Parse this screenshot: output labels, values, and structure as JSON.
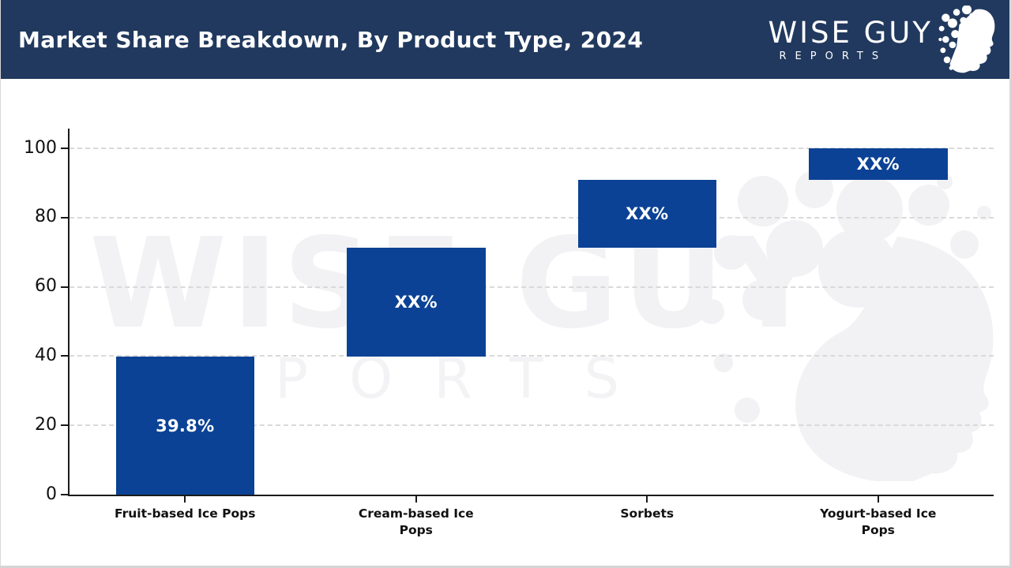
{
  "header": {
    "title": "Market Share Breakdown, By Product Type, 2024",
    "logo": {
      "line1": "WISE GUY",
      "line2": "REPORTS"
    }
  },
  "watermark": {
    "line1": "WISE GUY",
    "line2": "REPORTS"
  },
  "colors": {
    "header_bg": "#21395e",
    "bar": "#0b4295",
    "bar_label": "#ffffff",
    "gridline": "#d9d9d9",
    "axis": "#1a1a1a",
    "watermark": "#f2f2f4"
  },
  "chart_data": {
    "type": "bar",
    "variant": "waterfall",
    "title": "Market Share Breakdown, By Product Type, 2024",
    "xlabel": "",
    "ylabel": "",
    "ylim": [
      0,
      100
    ],
    "yticks": [
      0,
      20,
      40,
      60,
      80,
      100
    ],
    "grid": "horizontal-dashed",
    "legend": "none",
    "categories": [
      "Fruit-based Ice Pops",
      "Cream-based Ice Pops",
      "Sorbets",
      "Yogurt-based Ice Pops"
    ],
    "segments": [
      {
        "category": "Fruit-based Ice Pops",
        "start": 0,
        "end": 39.8,
        "label": "39.8%"
      },
      {
        "category": "Cream-based Ice Pops",
        "start": 39.8,
        "end": 71.2,
        "label": "XX%"
      },
      {
        "category": "Sorbets",
        "start": 71.2,
        "end": 90.9,
        "label": "XX%"
      },
      {
        "category": "Yogurt-based Ice Pops",
        "start": 90.9,
        "end": 100,
        "label": "XX%"
      }
    ]
  }
}
